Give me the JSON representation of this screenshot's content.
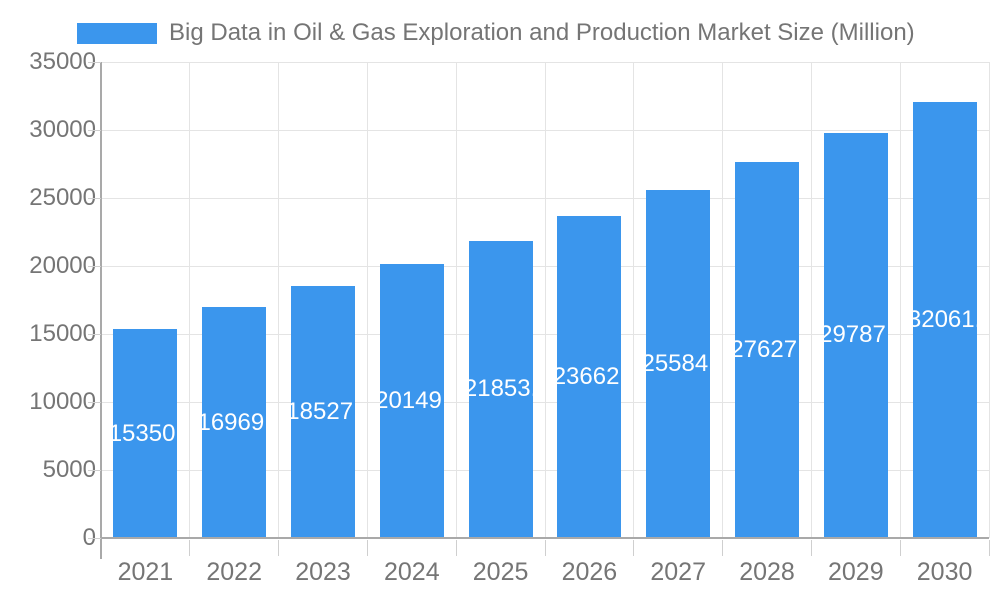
{
  "legend": {
    "label": "Big Data in Oil & Gas Exploration and Production Market Size (Million)",
    "swatch_color": "#3b96ed"
  },
  "chart_data": {
    "type": "bar",
    "title": "Big Data in Oil & Gas Exploration and Production Market Size (Million)",
    "categories": [
      "2021",
      "2022",
      "2023",
      "2024",
      "2025",
      "2026",
      "2027",
      "2028",
      "2029",
      "2030"
    ],
    "values": [
      15350,
      16969,
      18527,
      20149,
      21853,
      23662,
      25584,
      27627,
      29787,
      32061
    ],
    "bar_labels": [
      "15350.",
      "16969.",
      "18527.",
      "20149.",
      "21853.",
      "23662.",
      "25584.",
      "27627.",
      "29787.",
      "32061."
    ],
    "xlabel": "",
    "ylabel": "",
    "ylim": [
      0,
      35000
    ],
    "yticks": [
      0,
      5000,
      10000,
      15000,
      20000,
      25000,
      30000,
      35000
    ],
    "grid": true,
    "legend_position": "top",
    "bar_color": "#3b96ed",
    "bar_label_color": "#ffffff",
    "axis_text_color": "#757575"
  }
}
